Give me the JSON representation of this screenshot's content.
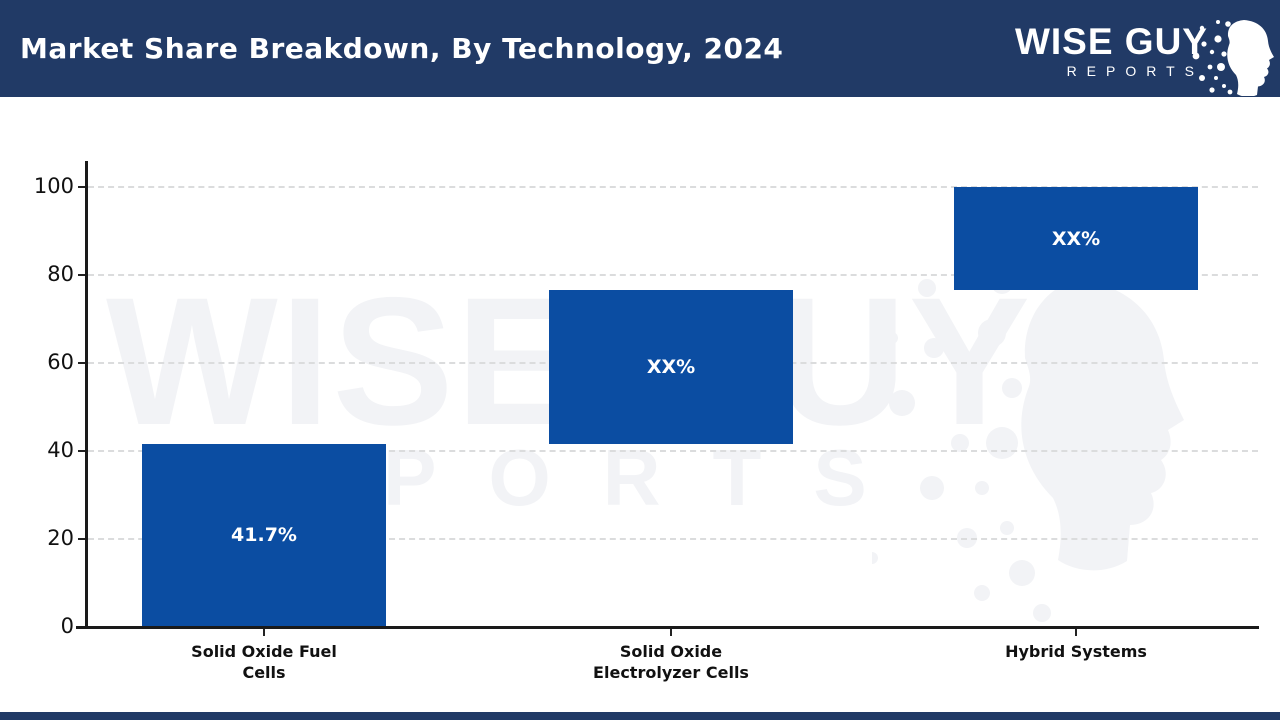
{
  "header": {
    "title": "Market Share Breakdown, By Technology, 2024",
    "brand": {
      "line1": "WISE GUY",
      "line2": "REPORTS"
    }
  },
  "watermark": {
    "line1": "WISE GUY",
    "line2": "REPORTS"
  },
  "colors": {
    "header_bg": "#213A66",
    "footer_bg": "#213A66",
    "bar": "#0B4DA2",
    "bar_label": "#FFFFFF",
    "grid": "#DBDCDD",
    "axis": "#1A1A1A",
    "tick_text": "#111111",
    "watermark": "#F2F3F6",
    "title_text": "#FFFFFF"
  },
  "chart_data": {
    "type": "bar",
    "variant": "stacked-waterfall-segments",
    "title": "Market Share Breakdown, By Technology, 2024",
    "categories": [
      "Solid Oxide Fuel Cells",
      "Solid Oxide Electrolyzer Cells",
      "Hybrid Systems"
    ],
    "category_lines": [
      [
        "Solid Oxide Fuel",
        "Cells"
      ],
      [
        "Solid Oxide",
        "Electrolyzer Cells"
      ],
      [
        "Hybrid Systems"
      ]
    ],
    "segments": [
      {
        "category": "Solid Oxide Fuel Cells",
        "label": "41.7%",
        "start": 0,
        "end": 41.7
      },
      {
        "category": "Solid Oxide Electrolyzer Cells",
        "label": "XX%",
        "start": 41.7,
        "end": 76.5
      },
      {
        "category": "Hybrid Systems",
        "label": "XX%",
        "start": 76.5,
        "end": 100
      }
    ],
    "ylim": [
      0,
      100
    ],
    "yticks": [
      0,
      20,
      40,
      60,
      80,
      100
    ],
    "xlabel": "",
    "ylabel": "",
    "grid": "dashed-horizontal",
    "legend": "none"
  }
}
